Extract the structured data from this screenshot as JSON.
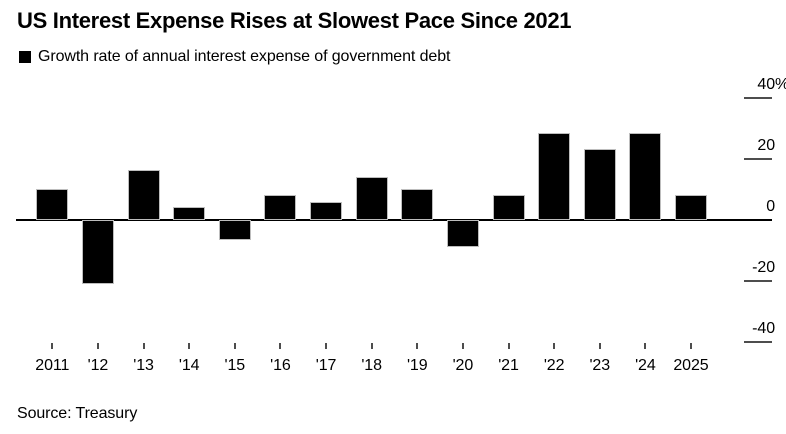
{
  "header": {
    "title": "US Interest Expense Rises at Slowest Pace Since 2021"
  },
  "legend": {
    "swatch_color": "#000000",
    "label": "Growth rate of annual interest expense of government debt"
  },
  "source": "Source: Treasury",
  "colors": {
    "bar": "#000000",
    "bar_outline": "#bdbdbd",
    "axis": "#000000",
    "tick": "#4d4d4d",
    "background": "#ffffff",
    "text": "#000000"
  },
  "chart_data": {
    "type": "bar",
    "title": "US Interest Expense Rises at Slowest Pace Since 2021",
    "series_label": "Growth rate of annual interest expense of government debt",
    "categories": [
      "2011",
      "'12",
      "'13",
      "'14",
      "'15",
      "'16",
      "'17",
      "'18",
      "'19",
      "'20",
      "'21",
      "'22",
      "'23",
      "'24",
      "2025"
    ],
    "values": [
      10.2,
      -21,
      16.4,
      4.2,
      -6.7,
      8.1,
      6,
      14.2,
      10.2,
      -9,
      8.1,
      28.5,
      23.2,
      28.5,
      8.2
    ],
    "unit": "%",
    "xlabel": "",
    "ylabel": "",
    "ylim": [
      -45,
      45
    ],
    "yticks": [
      {
        "value": 40,
        "label": "40%"
      },
      {
        "value": 20,
        "label": "20"
      },
      {
        "value": 0,
        "label": "0"
      },
      {
        "value": -20,
        "label": "-20"
      },
      {
        "value": -40,
        "label": "-40"
      }
    ],
    "grid": false,
    "legend_position": "top-left",
    "axis_position": "right",
    "source": "Source: Treasury"
  }
}
